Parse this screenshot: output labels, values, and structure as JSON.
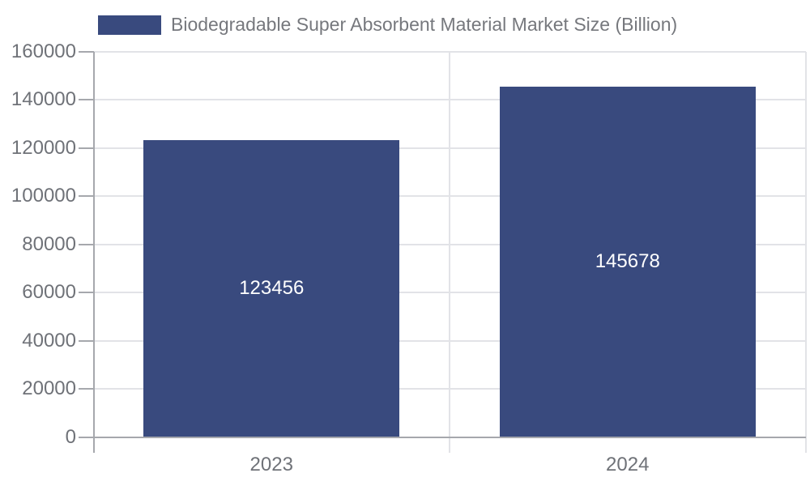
{
  "chart_data": {
    "type": "bar",
    "title": "Biodegradable Super Absorbent Material Market Size (Billion)",
    "legend": {
      "label": "Biodegradable Super Absorbent Material Market Size (Billion)",
      "position": "top-center"
    },
    "categories": [
      "2023",
      "2024"
    ],
    "series": [
      {
        "name": "Biodegradable Super Absorbent Material Market Size (Billion)",
        "values": [
          123456,
          145678
        ]
      }
    ],
    "value_labels": [
      "123456",
      "145678"
    ],
    "xlabel": "",
    "ylabel": "",
    "ylim": [
      0,
      160000
    ],
    "yticks": [
      0,
      20000,
      40000,
      60000,
      80000,
      100000,
      120000,
      140000,
      160000
    ],
    "ytick_labels": [
      "0",
      "20000",
      "40000",
      "60000",
      "80000",
      "100000",
      "120000",
      "140000",
      "160000"
    ],
    "grid": true,
    "colors": {
      "bar": "#394A7E",
      "bar_label": "#FFFFFF",
      "axis": "#A6A8AD",
      "grid": "#E2E3E7",
      "tick_text": "#6F7278",
      "title_text": "#76787D",
      "background": "#FFFFFF"
    }
  }
}
